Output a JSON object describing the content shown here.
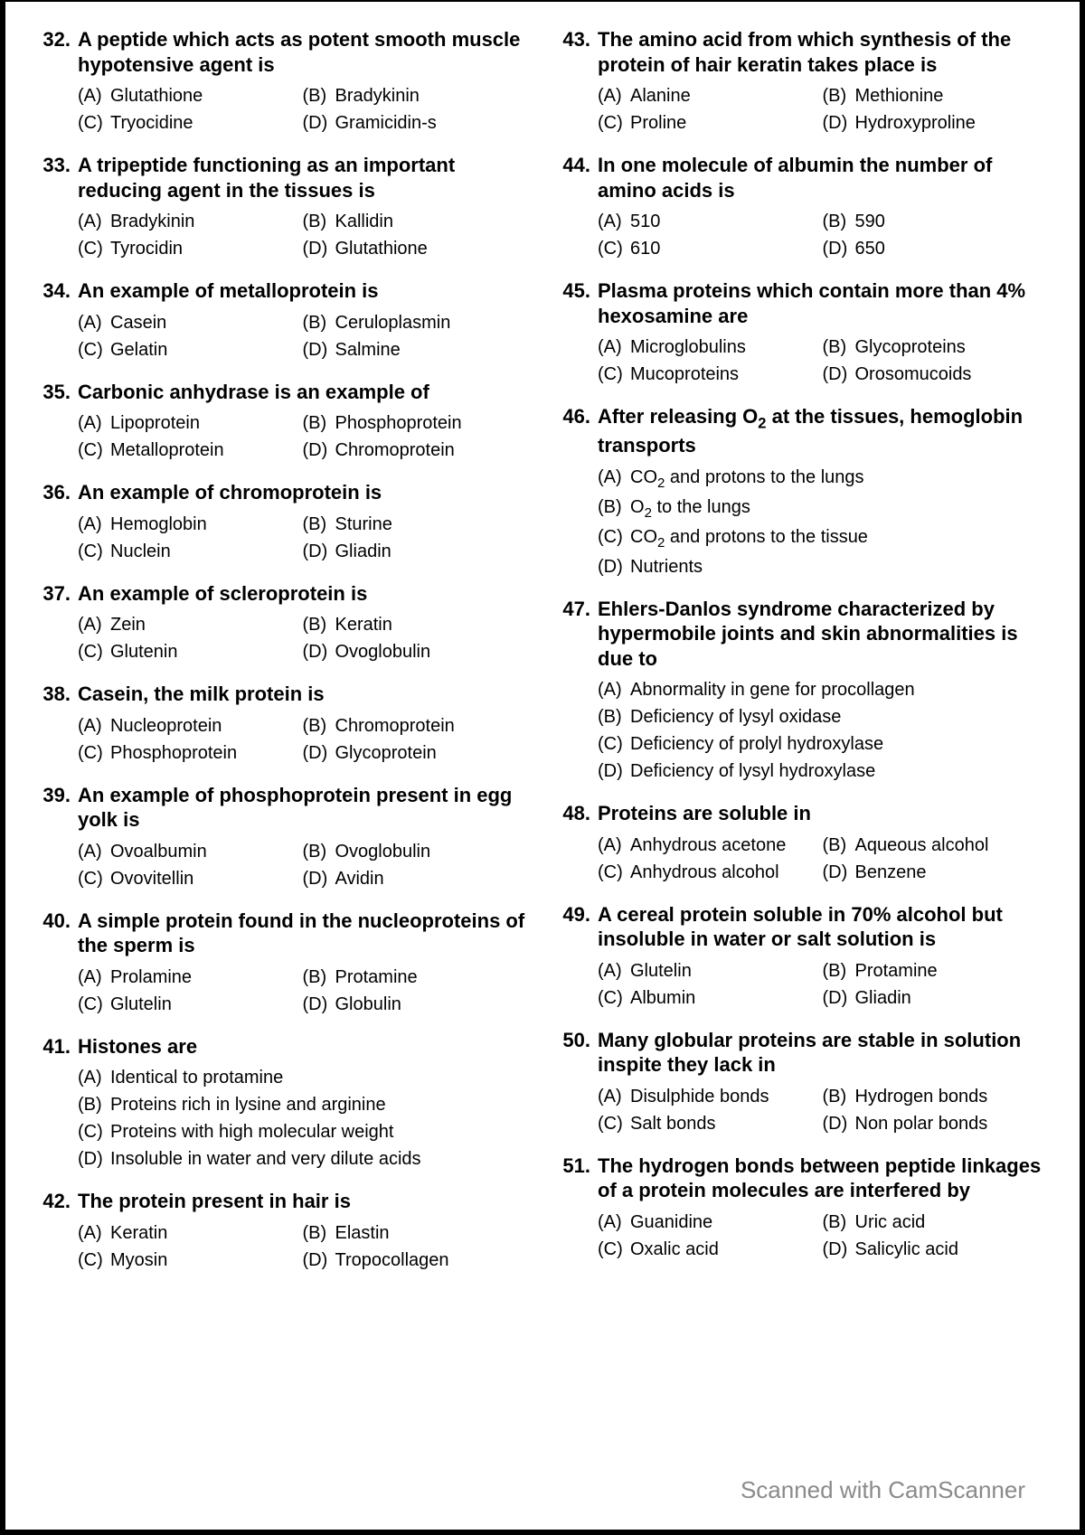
{
  "page": {
    "background_color": "#ffffff",
    "text_color": "#000000",
    "border_color": "#000000",
    "scanned_text": "Scanned with CamScanner",
    "scanned_color": "#8a8a8a",
    "question_fontsize": 22,
    "option_fontsize": 20
  },
  "columns": [
    [
      {
        "num": "32.",
        "text": "A peptide which acts as potent smooth muscle hypotensive agent is",
        "layout": "2col",
        "options": [
          {
            "l": "(A)",
            "t": "Glutathione"
          },
          {
            "l": "(B)",
            "t": "Bradykinin"
          },
          {
            "l": "(C)",
            "t": "Tryocidine"
          },
          {
            "l": "(D)",
            "t": "Gramicidin-s"
          }
        ]
      },
      {
        "num": "33.",
        "text": "A tripeptide functioning as an important reducing agent in the tissues is",
        "layout": "2col",
        "options": [
          {
            "l": "(A)",
            "t": "Bradykinin"
          },
          {
            "l": "(B)",
            "t": "Kallidin"
          },
          {
            "l": "(C)",
            "t": "Tyrocidin"
          },
          {
            "l": "(D)",
            "t": "Glutathione"
          }
        ]
      },
      {
        "num": "34.",
        "text": "An example of metalloprotein is",
        "layout": "2col",
        "options": [
          {
            "l": "(A)",
            "t": "Casein"
          },
          {
            "l": "(B)",
            "t": "Ceruloplasmin"
          },
          {
            "l": "(C)",
            "t": "Gelatin"
          },
          {
            "l": "(D)",
            "t": "Salmine"
          }
        ]
      },
      {
        "num": "35.",
        "text": "Carbonic anhydrase is an example of",
        "layout": "2col",
        "options": [
          {
            "l": "(A)",
            "t": "Lipoprotein"
          },
          {
            "l": "(B)",
            "t": "Phosphoprotein"
          },
          {
            "l": "(C)",
            "t": "Metalloprotein"
          },
          {
            "l": "(D)",
            "t": "Chromoprotein"
          }
        ]
      },
      {
        "num": "36.",
        "text": "An example of chromoprotein is",
        "layout": "2col",
        "options": [
          {
            "l": "(A)",
            "t": "Hemoglobin"
          },
          {
            "l": "(B)",
            "t": "Sturine"
          },
          {
            "l": "(C)",
            "t": "Nuclein"
          },
          {
            "l": "(D)",
            "t": "Gliadin"
          }
        ]
      },
      {
        "num": "37.",
        "text": "An example of scleroprotein is",
        "layout": "2col",
        "options": [
          {
            "l": "(A)",
            "t": "Zein"
          },
          {
            "l": "(B)",
            "t": "Keratin"
          },
          {
            "l": "(C)",
            "t": "Glutenin"
          },
          {
            "l": "(D)",
            "t": "Ovoglobulin"
          }
        ]
      },
      {
        "num": "38.",
        "text": "Casein, the milk protein is",
        "layout": "2col",
        "options": [
          {
            "l": "(A)",
            "t": "Nucleoprotein"
          },
          {
            "l": "(B)",
            "t": "Chromoprotein"
          },
          {
            "l": "(C)",
            "t": "Phosphoprotein"
          },
          {
            "l": "(D)",
            "t": "Glycoprotein"
          }
        ]
      },
      {
        "num": "39.",
        "text": "An example of phosphoprotein present in egg yolk is",
        "layout": "2col",
        "options": [
          {
            "l": "(A)",
            "t": "Ovoalbumin"
          },
          {
            "l": "(B)",
            "t": "Ovoglobulin"
          },
          {
            "l": "(C)",
            "t": "Ovovitellin"
          },
          {
            "l": "(D)",
            "t": "Avidin"
          }
        ]
      },
      {
        "num": "40.",
        "text": "A simple protein found in the nucleoproteins of the sperm is",
        "layout": "2col",
        "options": [
          {
            "l": "(A)",
            "t": "Prolamine"
          },
          {
            "l": "(B)",
            "t": "Protamine"
          },
          {
            "l": "(C)",
            "t": "Glutelin"
          },
          {
            "l": "(D)",
            "t": "Globulin"
          }
        ]
      },
      {
        "num": "41.",
        "text": "Histones are",
        "layout": "1col",
        "options": [
          {
            "l": "(A)",
            "t": "Identical to protamine"
          },
          {
            "l": "(B)",
            "t": "Proteins rich in lysine and arginine"
          },
          {
            "l": "(C)",
            "t": "Proteins with high molecular weight"
          },
          {
            "l": "(D)",
            "t": "Insoluble in water and very dilute acids"
          }
        ]
      },
      {
        "num": "42.",
        "text": "The protein present in hair is",
        "layout": "2col",
        "options": [
          {
            "l": "(A)",
            "t": "Keratin"
          },
          {
            "l": "(B)",
            "t": "Elastin"
          },
          {
            "l": "(C)",
            "t": "Myosin"
          },
          {
            "l": "(D)",
            "t": "Tropocollagen"
          }
        ]
      }
    ],
    [
      {
        "num": "43.",
        "text": "The amino acid from which synthesis of the protein of hair keratin takes place is",
        "layout": "2col",
        "options": [
          {
            "l": "(A)",
            "t": "Alanine"
          },
          {
            "l": "(B)",
            "t": "Methionine"
          },
          {
            "l": "(C)",
            "t": "Proline"
          },
          {
            "l": "(D)",
            "t": "Hydroxyproline"
          }
        ]
      },
      {
        "num": "44.",
        "text": "In one molecule of albumin the number of amino acids is",
        "layout": "2col",
        "options": [
          {
            "l": "(A)",
            "t": "510"
          },
          {
            "l": "(B)",
            "t": "590"
          },
          {
            "l": "(C)",
            "t": "610"
          },
          {
            "l": "(D)",
            "t": "650"
          }
        ]
      },
      {
        "num": "45.",
        "text": "Plasma proteins which contain more than 4% hexosamine are",
        "layout": "2col",
        "options": [
          {
            "l": "(A)",
            "t": "Microglobulins"
          },
          {
            "l": "(B)",
            "t": "Glycoproteins"
          },
          {
            "l": "(C)",
            "t": "Mucoproteins"
          },
          {
            "l": "(D)",
            "t": "Orosomucoids"
          }
        ]
      },
      {
        "num": "46.",
        "text": "After releasing O<sub>2</sub> at the tissues, hemoglobin transports",
        "html": true,
        "layout": "1col",
        "options": [
          {
            "l": "(A)",
            "t": "CO<sub>2</sub> and protons to the lungs",
            "html": true
          },
          {
            "l": "(B)",
            "t": "O<sub>2</sub> to the lungs",
            "html": true
          },
          {
            "l": "(C)",
            "t": "CO<sub>2</sub> and protons to the tissue",
            "html": true
          },
          {
            "l": "(D)",
            "t": "Nutrients"
          }
        ]
      },
      {
        "num": "47.",
        "text": "Ehlers-Danlos syndrome characterized by hypermobile joints and skin abnormalities is due to",
        "layout": "1col",
        "options": [
          {
            "l": "(A)",
            "t": "Abnormality in gene for procollagen"
          },
          {
            "l": "(B)",
            "t": "Deficiency of lysyl oxidase"
          },
          {
            "l": "(C)",
            "t": "Deficiency of prolyl hydroxylase"
          },
          {
            "l": "(D)",
            "t": "Deficiency of lysyl hydroxylase"
          }
        ]
      },
      {
        "num": "48.",
        "text": "Proteins are soluble in",
        "layout": "2col",
        "options": [
          {
            "l": "(A)",
            "t": "Anhydrous acetone"
          },
          {
            "l": "(B)",
            "t": "Aqueous alcohol"
          },
          {
            "l": "(C)",
            "t": "Anhydrous alcohol"
          },
          {
            "l": "(D)",
            "t": "Benzene"
          }
        ]
      },
      {
        "num": "49.",
        "text": "A cereal protein soluble in 70% alcohol but insoluble in water or salt solution is",
        "layout": "2col",
        "options": [
          {
            "l": "(A)",
            "t": "Glutelin"
          },
          {
            "l": "(B)",
            "t": "Protamine"
          },
          {
            "l": "(C)",
            "t": "Albumin"
          },
          {
            "l": "(D)",
            "t": "Gliadin"
          }
        ]
      },
      {
        "num": "50.",
        "text": "Many globular proteins are stable in solution inspite they lack in",
        "layout": "2col",
        "options": [
          {
            "l": "(A)",
            "t": "Disulphide bonds"
          },
          {
            "l": "(B)",
            "t": "Hydrogen bonds"
          },
          {
            "l": "(C)",
            "t": "Salt bonds"
          },
          {
            "l": "(D)",
            "t": "Non polar bonds"
          }
        ]
      },
      {
        "num": "51.",
        "text": "The hydrogen bonds between peptide linkages of a protein molecules are interfered by",
        "layout": "2col",
        "options": [
          {
            "l": "(A)",
            "t": "Guanidine"
          },
          {
            "l": "(B)",
            "t": "Uric acid"
          },
          {
            "l": "(C)",
            "t": "Oxalic acid"
          },
          {
            "l": "(D)",
            "t": "Salicylic acid"
          }
        ]
      }
    ]
  ]
}
